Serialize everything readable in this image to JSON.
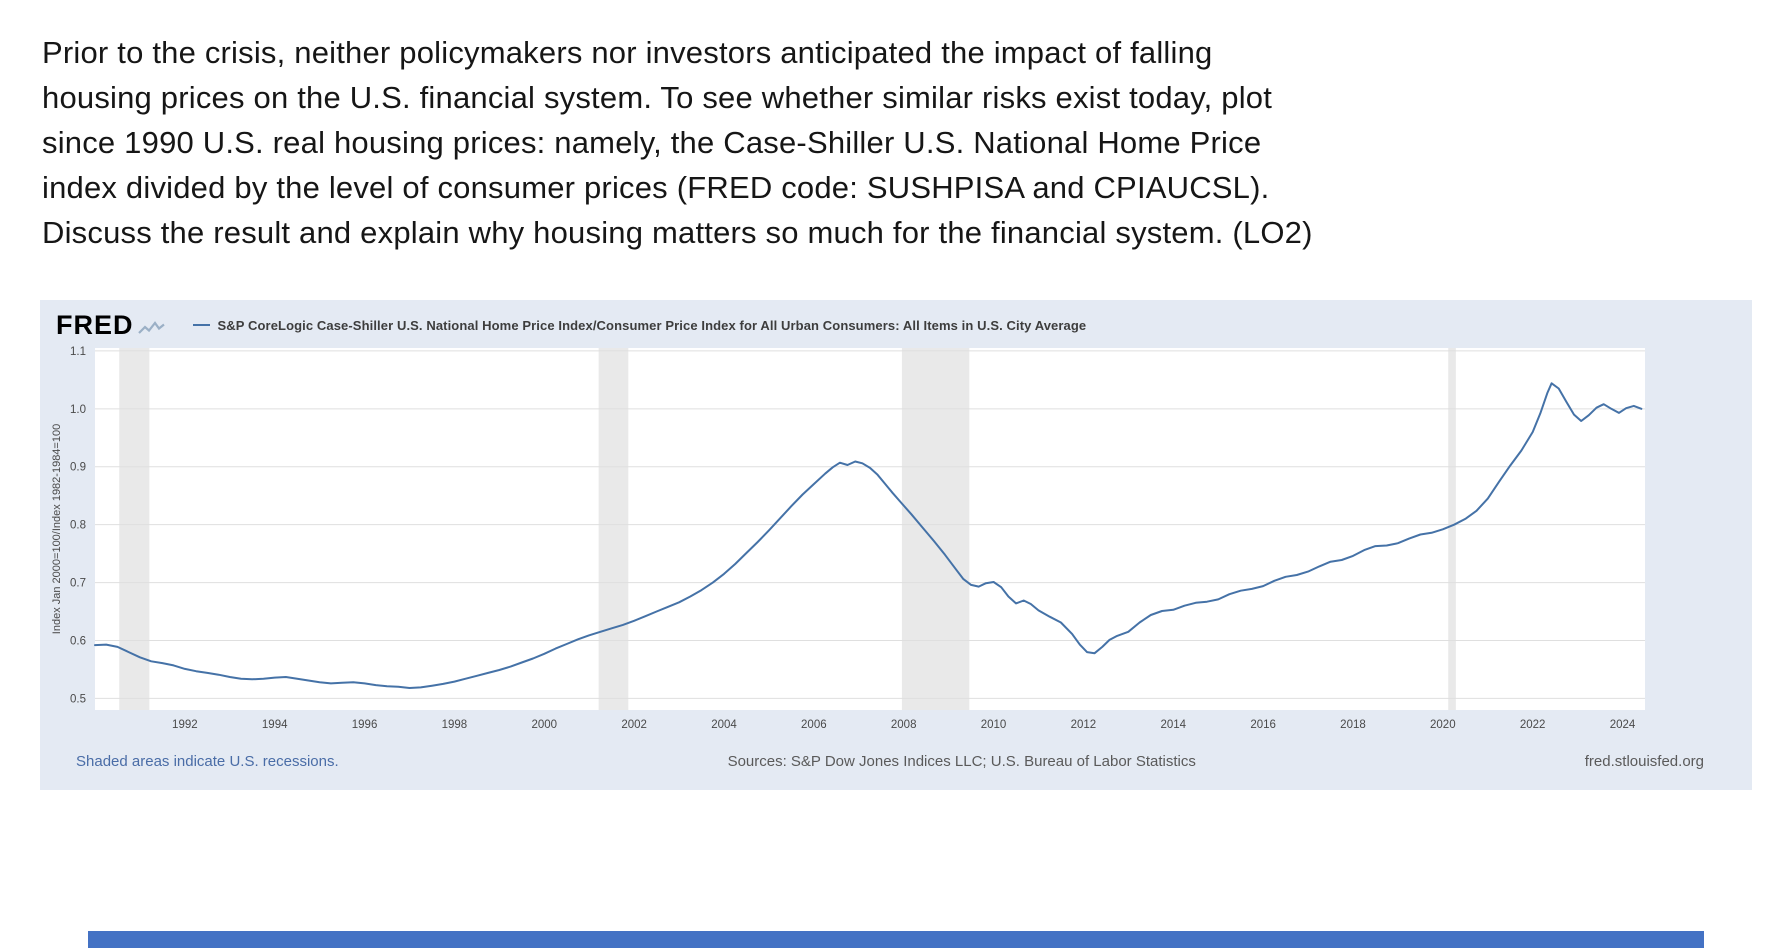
{
  "question": {
    "lines": [
      "Prior to the crisis, neither policymakers nor investors anticipated the impact of falling",
      "housing prices on the U.S. financial system. To see whether similar risks exist today, plot",
      "since 1990 U.S. real housing prices: namely, the Case-Shiller U.S. National Home Price",
      "index divided by the level of consumer prices (FRED code: SUSHPISA and CPIAUCSL).",
      "Discuss the result and explain why housing matters so much for the financial system. (LO2)"
    ]
  },
  "fred": {
    "logo": "FRED",
    "legend": {
      "dash": "—",
      "label": "S&P CoreLogic Case-Shiller U.S. National Home Price Index/Consumer Price Index for All Urban Consumers: All Items in U.S. City Average"
    },
    "footer": {
      "recession_note": "Shaded areas indicate U.S. recessions.",
      "sources": "Sources: S&P Dow Jones Indices LLC; U.S. Bureau of Labor Statistics",
      "site": "fred.stlouisfed.org"
    }
  },
  "chart_data": {
    "type": "line",
    "title": "S&P CoreLogic Case-Shiller U.S. National Home Price Index/Consumer Price Index for All Urban Consumers: All Items in U.S. City Average",
    "xlabel": "",
    "ylabel": "Index Jan 2000=100/Index 1982-1984=100",
    "legend_position": "top",
    "grid": "horizontal",
    "x_range": [
      1990,
      2024.5
    ],
    "y_range": [
      0.48,
      1.105
    ],
    "y_ticks": [
      0.5,
      0.6,
      0.7,
      0.8,
      0.9,
      1.0,
      1.1
    ],
    "x_ticks": [
      1992,
      1994,
      1996,
      1998,
      2000,
      2002,
      2004,
      2006,
      2008,
      2010,
      2012,
      2014,
      2016,
      2018,
      2020,
      2022,
      2024
    ],
    "recessions": [
      [
        1990.54,
        1991.21
      ],
      [
        2001.21,
        2001.87
      ],
      [
        2007.96,
        2009.46
      ],
      [
        2020.12,
        2020.29
      ]
    ],
    "colors": {
      "line": "#4572a7",
      "panel_bg": "#e4eaf3",
      "plot_bg": "#ffffff",
      "recession": "#e9e9e9",
      "grid": "#dfdfdf",
      "note_blue": "#4a6da7"
    },
    "series": [
      {
        "name": "S&P CoreLogic Case-Shiller U.S. National Home Price Index/Consumer Price Index for All Urban Consumers: All Items in U.S. City Average",
        "x": [
          1990.0,
          1990.25,
          1990.5,
          1990.75,
          1991.0,
          1991.25,
          1991.5,
          1991.75,
          1992.0,
          1992.25,
          1992.5,
          1992.75,
          1993.0,
          1993.25,
          1993.5,
          1993.75,
          1994.0,
          1994.25,
          1994.5,
          1994.75,
          1995.0,
          1995.25,
          1995.5,
          1995.75,
          1996.0,
          1996.25,
          1996.5,
          1996.75,
          1997.0,
          1997.25,
          1997.5,
          1997.75,
          1998.0,
          1998.25,
          1998.5,
          1998.75,
          1999.0,
          1999.25,
          1999.5,
          1999.75,
          2000.0,
          2000.25,
          2000.5,
          2000.75,
          2001.0,
          2001.25,
          2001.5,
          2001.75,
          2002.0,
          2002.25,
          2002.5,
          2002.75,
          2003.0,
          2003.25,
          2003.5,
          2003.75,
          2004.0,
          2004.25,
          2004.5,
          2004.75,
          2005.0,
          2005.25,
          2005.5,
          2005.75,
          2006.0,
          2006.25,
          2006.42,
          2006.58,
          2006.75,
          2006.92,
          2007.08,
          2007.25,
          2007.42,
          2007.58,
          2007.75,
          2007.92,
          2008.17,
          2008.42,
          2008.67,
          2008.92,
          2009.17,
          2009.33,
          2009.5,
          2009.67,
          2009.83,
          2010.0,
          2010.17,
          2010.33,
          2010.5,
          2010.67,
          2010.83,
          2011.0,
          2011.25,
          2011.5,
          2011.75,
          2011.92,
          2012.08,
          2012.25,
          2012.42,
          2012.58,
          2012.75,
          2013.0,
          2013.25,
          2013.5,
          2013.75,
          2014.0,
          2014.25,
          2014.5,
          2014.75,
          2015.0,
          2015.25,
          2015.5,
          2015.75,
          2016.0,
          2016.25,
          2016.5,
          2016.75,
          2017.0,
          2017.25,
          2017.5,
          2017.75,
          2018.0,
          2018.25,
          2018.5,
          2018.75,
          2019.0,
          2019.25,
          2019.5,
          2019.75,
          2020.0,
          2020.25,
          2020.5,
          2020.75,
          2021.0,
          2021.25,
          2021.5,
          2021.75,
          2022.0,
          2022.17,
          2022.33,
          2022.42,
          2022.58,
          2022.75,
          2022.92,
          2023.08,
          2023.25,
          2023.42,
          2023.58,
          2023.75,
          2023.92,
          2024.08,
          2024.25,
          2024.42
        ],
        "y": [
          0.592,
          0.593,
          0.589,
          0.58,
          0.571,
          0.564,
          0.561,
          0.557,
          0.551,
          0.547,
          0.544,
          0.541,
          0.537,
          0.534,
          0.533,
          0.534,
          0.536,
          0.537,
          0.534,
          0.531,
          0.528,
          0.526,
          0.527,
          0.528,
          0.526,
          0.523,
          0.521,
          0.52,
          0.518,
          0.519,
          0.522,
          0.525,
          0.529,
          0.534,
          0.539,
          0.544,
          0.549,
          0.555,
          0.562,
          0.569,
          0.577,
          0.586,
          0.594,
          0.602,
          0.609,
          0.615,
          0.621,
          0.627,
          0.634,
          0.642,
          0.65,
          0.658,
          0.666,
          0.676,
          0.687,
          0.7,
          0.715,
          0.732,
          0.751,
          0.77,
          0.79,
          0.811,
          0.832,
          0.852,
          0.87,
          0.888,
          0.899,
          0.907,
          0.903,
          0.909,
          0.906,
          0.898,
          0.886,
          0.871,
          0.855,
          0.84,
          0.818,
          0.795,
          0.772,
          0.748,
          0.722,
          0.706,
          0.696,
          0.693,
          0.699,
          0.701,
          0.692,
          0.676,
          0.664,
          0.669,
          0.663,
          0.652,
          0.641,
          0.631,
          0.611,
          0.593,
          0.58,
          0.578,
          0.589,
          0.601,
          0.608,
          0.615,
          0.631,
          0.644,
          0.651,
          0.653,
          0.66,
          0.665,
          0.667,
          0.671,
          0.68,
          0.686,
          0.689,
          0.694,
          0.703,
          0.71,
          0.713,
          0.719,
          0.728,
          0.736,
          0.739,
          0.746,
          0.756,
          0.763,
          0.764,
          0.768,
          0.776,
          0.783,
          0.786,
          0.792,
          0.8,
          0.81,
          0.824,
          0.845,
          0.874,
          0.902,
          0.928,
          0.96,
          0.992,
          1.028,
          1.044,
          1.035,
          1.012,
          0.99,
          0.979,
          0.989,
          1.002,
          1.008,
          1.0,
          0.993,
          1.001,
          1.005,
          1.0
        ]
      }
    ]
  }
}
